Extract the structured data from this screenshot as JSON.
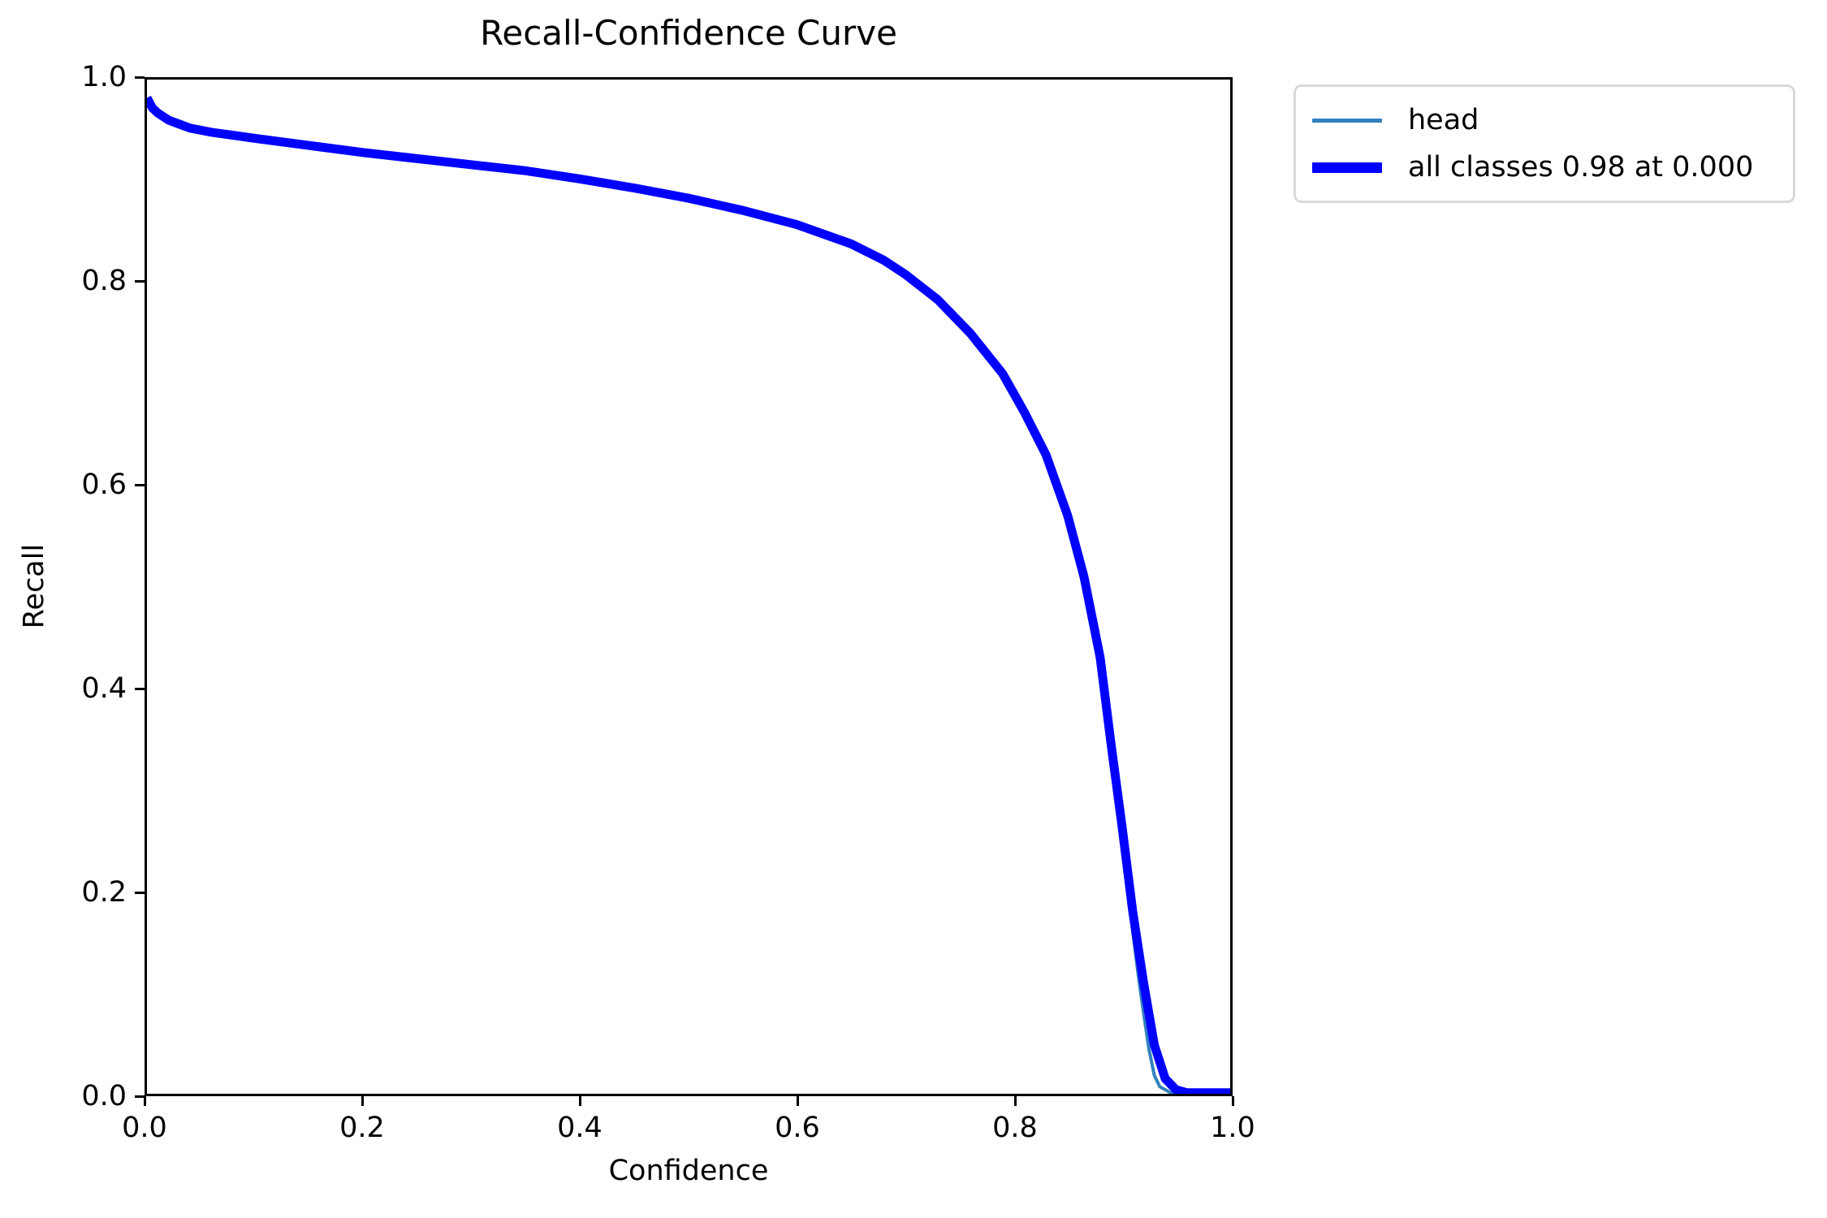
{
  "chart_data": {
    "type": "line",
    "title": "Recall-Confidence Curve",
    "xlabel": "Confidence",
    "ylabel": "Recall",
    "xlim": [
      0,
      1
    ],
    "ylim": [
      0,
      1
    ],
    "grid": false,
    "background_color": "#ffffff",
    "axis_color": "#000000",
    "x_ticks": [
      "0.0",
      "0.2",
      "0.4",
      "0.6",
      "0.8",
      "1.0"
    ],
    "y_ticks": [
      "0.0",
      "0.2",
      "0.4",
      "0.6",
      "0.8",
      "1.0"
    ],
    "legend_position": "outside-upper-right",
    "series": [
      {
        "name": "head",
        "slug": "head-curve",
        "color": "#3181bd",
        "line_width": 4,
        "x": [
          0.0,
          0.005,
          0.01,
          0.02,
          0.03,
          0.04,
          0.06,
          0.08,
          0.1,
          0.15,
          0.2,
          0.25,
          0.3,
          0.35,
          0.4,
          0.45,
          0.5,
          0.55,
          0.6,
          0.65,
          0.68,
          0.7,
          0.73,
          0.76,
          0.79,
          0.81,
          0.83,
          0.85,
          0.865,
          0.88,
          0.89,
          0.9,
          0.905,
          0.91,
          0.915,
          0.92,
          0.925,
          0.93,
          0.935,
          0.945,
          1.0
        ],
        "y": [
          0.98,
          0.97,
          0.965,
          0.958,
          0.954,
          0.95,
          0.946,
          0.943,
          0.94,
          0.933,
          0.926,
          0.92,
          0.914,
          0.908,
          0.9,
          0.891,
          0.881,
          0.869,
          0.855,
          0.836,
          0.82,
          0.806,
          0.781,
          0.748,
          0.708,
          0.67,
          0.628,
          0.566,
          0.505,
          0.422,
          0.333,
          0.248,
          0.205,
          0.16,
          0.118,
          0.08,
          0.044,
          0.018,
          0.007,
          0.001,
          0.001
        ]
      },
      {
        "name": "all classes 0.98 at 0.000",
        "slug": "all-classes-curve",
        "color": "#0000ff",
        "line_width": 11,
        "x": [
          0.0,
          0.005,
          0.01,
          0.02,
          0.03,
          0.04,
          0.06,
          0.08,
          0.1,
          0.15,
          0.2,
          0.25,
          0.3,
          0.35,
          0.4,
          0.45,
          0.5,
          0.55,
          0.6,
          0.65,
          0.68,
          0.7,
          0.73,
          0.76,
          0.79,
          0.81,
          0.83,
          0.85,
          0.865,
          0.88,
          0.89,
          0.9,
          0.91,
          0.92,
          0.93,
          0.94,
          0.95,
          0.96,
          1.0
        ],
        "y": [
          0.982,
          0.972,
          0.967,
          0.96,
          0.956,
          0.952,
          0.948,
          0.945,
          0.942,
          0.935,
          0.928,
          0.922,
          0.916,
          0.91,
          0.902,
          0.893,
          0.883,
          0.871,
          0.857,
          0.838,
          0.822,
          0.808,
          0.783,
          0.75,
          0.71,
          0.672,
          0.63,
          0.57,
          0.51,
          0.43,
          0.345,
          0.265,
          0.18,
          0.11,
          0.048,
          0.015,
          0.004,
          0.001,
          0.001
        ]
      }
    ],
    "legend": {
      "items": [
        {
          "label": "head",
          "color": "#3181bd",
          "sample_thickness": 5
        },
        {
          "label": "all classes 0.98 at 0.000",
          "color": "#0000ff",
          "sample_thickness": 13
        }
      ]
    }
  }
}
